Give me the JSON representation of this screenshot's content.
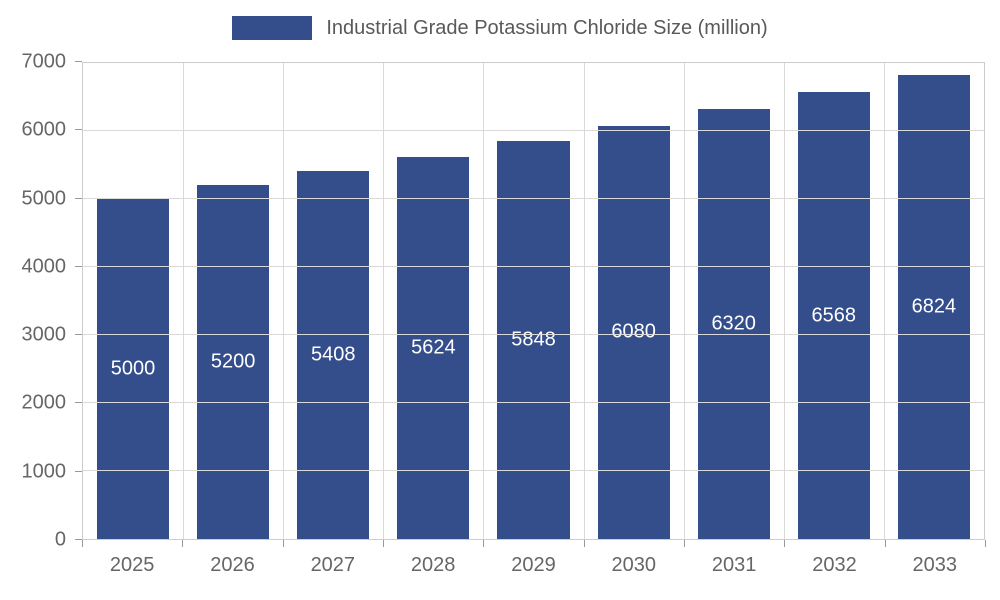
{
  "legend": {
    "label": "Industrial Grade Potassium Chloride Size (million)"
  },
  "colors": {
    "bar": "#344e8c",
    "axis_text": "#666666",
    "grid": "#d9d9d9",
    "bar_label_text": "#ffffff"
  },
  "chart_data": {
    "type": "bar",
    "title": "Industrial Grade Potassium Chloride Size (million)",
    "categories": [
      "2025",
      "2026",
      "2027",
      "2028",
      "2029",
      "2030",
      "2031",
      "2032",
      "2033"
    ],
    "values": [
      5000,
      5200,
      5408,
      5624,
      5848,
      6080,
      6320,
      6568,
      6824
    ],
    "xlabel": "",
    "ylabel": "",
    "ylim": [
      0,
      7000
    ],
    "ytick_step": 1000,
    "grid": true,
    "legend_position": "top",
    "bar_labels_visible": true
  }
}
